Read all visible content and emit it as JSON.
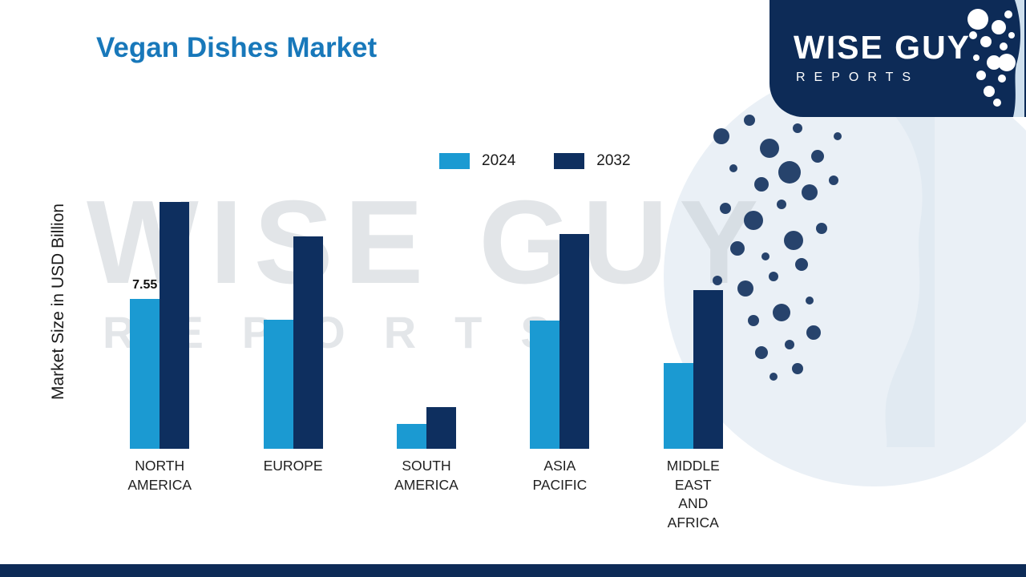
{
  "title": "Vegan Dishes Market",
  "logo": {
    "name_line": "WISE GUY",
    "sub_line": "REPORTS"
  },
  "watermark": {
    "line1": "WISE GUY",
    "line2": "REPORTS"
  },
  "chart_data": {
    "type": "bar",
    "title": "Vegan Dishes Market",
    "ylabel": "Market Size in USD Billion",
    "unit": "USD Billion",
    "categories": [
      "NORTH AMERICA",
      "EUROPE",
      "SOUTH AMERICA",
      "ASIA PACIFIC",
      "MIDDLE EAST AND AFRICA"
    ],
    "categories_display": [
      "NORTH\nAMERICA",
      "EUROPE",
      "SOUTH\nAMERICA",
      "ASIA\nPACIFIC",
      "MIDDLE\nEAST\nAND\nAFRICA"
    ],
    "series": [
      {
        "name": "2024",
        "color": "#1b9ad2",
        "values": [
          7.55,
          6.5,
          1.25,
          6.45,
          4.3
        ],
        "value_labels": [
          "7.55",
          "",
          "",
          "",
          ""
        ]
      },
      {
        "name": "2032",
        "color": "#0e2f5f",
        "values": [
          12.4,
          10.7,
          2.1,
          10.8,
          8.0
        ],
        "value_labels": [
          "",
          "",
          "",
          "",
          ""
        ]
      }
    ],
    "ylim": [
      0,
      15
    ],
    "grid": false,
    "legend_position": "top"
  },
  "colors": {
    "title_accent": "#1878ba",
    "navy": "#0d2b57",
    "light_blue": "#1b9ad2",
    "dark_series": "#0e2f5f"
  }
}
